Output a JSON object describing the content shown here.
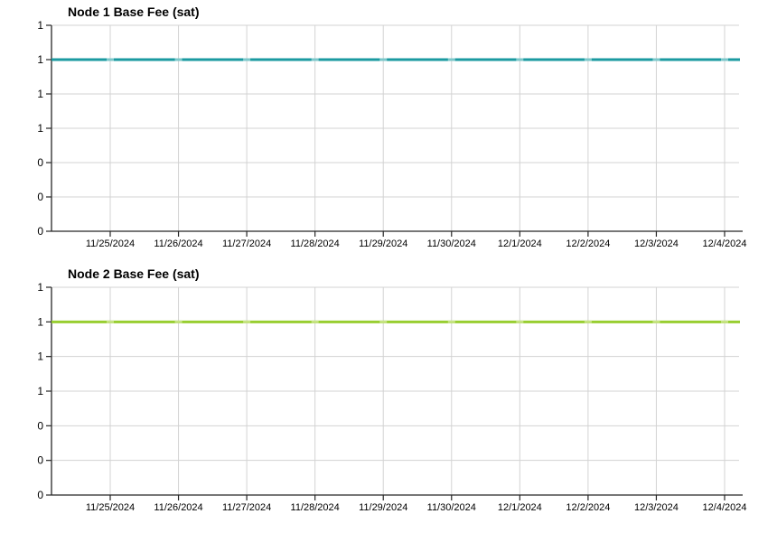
{
  "page": {
    "background": "#ffffff"
  },
  "axis": {
    "grid_color": "#d3d3d3",
    "axis_color": "#262626",
    "label_color": "#000000"
  },
  "chart_data": [
    {
      "type": "line",
      "title": "Node 1 Base Fee (sat)",
      "categories": [
        "11/25/2024",
        "11/26/2024",
        "11/27/2024",
        "11/28/2024",
        "11/29/2024",
        "11/30/2024",
        "12/1/2024",
        "12/2/2024",
        "12/3/2024",
        "12/4/2024"
      ],
      "values": [
        1,
        1,
        1,
        1,
        1,
        1,
        1,
        1,
        1,
        1
      ],
      "line_color": "#1b9aa0",
      "marker_color": "#7bc7ca",
      "ylim": [
        0,
        1.2
      ],
      "y_ticks": [
        1.2,
        1.0,
        0.8,
        0.6,
        0.4,
        0.2,
        0
      ],
      "y_tick_labels": [
        "1",
        "1",
        "1",
        "1",
        "0",
        "0",
        "0"
      ],
      "xlabel": "",
      "ylabel": "",
      "grid": "on",
      "legend": "none"
    },
    {
      "type": "line",
      "title": "Node 2 Base Fee (sat)",
      "categories": [
        "11/25/2024",
        "11/26/2024",
        "11/27/2024",
        "11/28/2024",
        "11/29/2024",
        "11/30/2024",
        "12/1/2024",
        "12/2/2024",
        "12/3/2024",
        "12/4/2024"
      ],
      "values": [
        1,
        1,
        1,
        1,
        1,
        1,
        1,
        1,
        1,
        1
      ],
      "line_color": "#98ce31",
      "marker_color": "#c5e381",
      "ylim": [
        0,
        1.2
      ],
      "y_ticks": [
        1.2,
        1.0,
        0.8,
        0.6,
        0.4,
        0.2,
        0
      ],
      "y_tick_labels": [
        "1",
        "1",
        "1",
        "1",
        "0",
        "0",
        "0"
      ],
      "xlabel": "",
      "ylabel": "",
      "grid": "on",
      "legend": "none"
    }
  ]
}
